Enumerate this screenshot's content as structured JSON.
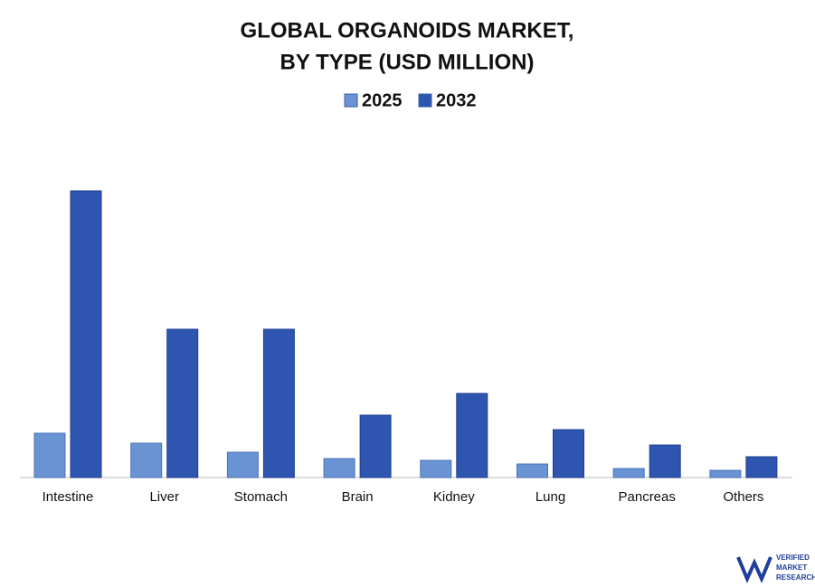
{
  "chart_data": {
    "type": "bar",
    "title": [
      "GLOBAL ORGANOIDS MARKET,",
      "BY TYPE (USD MILLION)"
    ],
    "categories": [
      "Intestine",
      "Liver",
      "Stomach",
      "Brain",
      "Kidney",
      "Lung",
      "Pancreas",
      "Others"
    ],
    "series": [
      {
        "name": "2025",
        "color": "#6a93d4",
        "values": [
          49,
          38,
          28,
          21,
          19,
          15,
          10,
          8
        ]
      },
      {
        "name": "2032",
        "color": "#2e55b0",
        "values": [
          317,
          164,
          164,
          69,
          93,
          53,
          36,
          23
        ]
      }
    ]
  },
  "logo": {
    "lines": [
      "VERIFIED",
      "MARKET",
      "RESEARCH"
    ]
  }
}
